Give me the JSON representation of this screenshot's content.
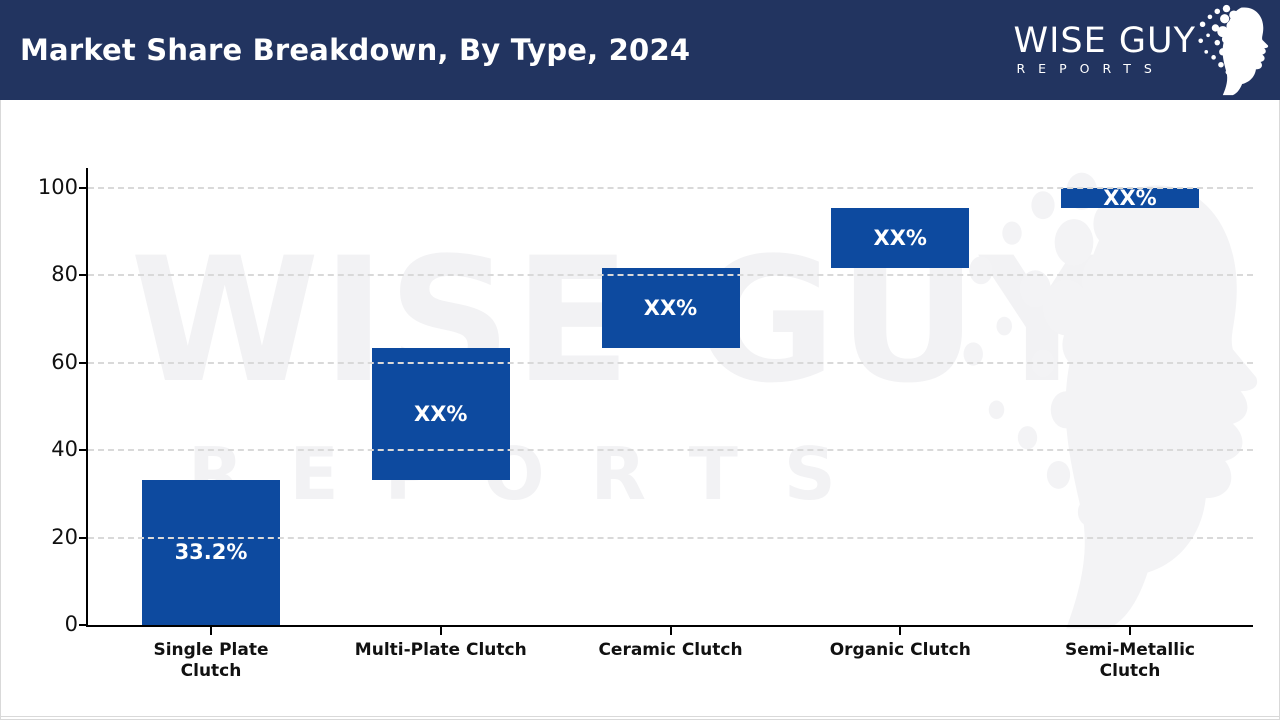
{
  "header": {
    "title": "Market Share Breakdown, By Type, 2024",
    "logo": {
      "wordmark": "WISE GUY",
      "subtitle": "REPORTS"
    }
  },
  "watermark": {
    "line1": "WISE GUY",
    "line2": "REPORTS"
  },
  "chart_data": {
    "type": "bar",
    "subtype": "waterfall",
    "title": "Market Share Breakdown, By Type, 2024",
    "categories": [
      "Single Plate Clutch",
      "Multi-Plate Clutch",
      "Ceramic Clutch",
      "Organic Clutch",
      "Semi-Metallic Clutch"
    ],
    "x_tick_lines": [
      [
        "Single Plate",
        "Clutch"
      ],
      [
        "Multi-Plate Clutch"
      ],
      [
        "Ceramic Clutch"
      ],
      [
        "Organic Clutch"
      ],
      [
        "Semi-Metallic",
        "Clutch"
      ]
    ],
    "series": [
      {
        "name": "Market Share (%)",
        "segments": [
          {
            "category": "Single Plate Clutch",
            "start": 0,
            "end": 33.2,
            "label": "33.2%"
          },
          {
            "category": "Multi-Plate Clutch",
            "start": 33.2,
            "end": 63.5,
            "label": "XX%"
          },
          {
            "category": "Ceramic Clutch",
            "start": 63.5,
            "end": 81.8,
            "label": "XX%"
          },
          {
            "category": "Organic Clutch",
            "start": 81.8,
            "end": 95.5,
            "label": "XX%"
          },
          {
            "category": "Semi-Metallic Clutch",
            "start": 95.5,
            "end": 100,
            "label": "XX%"
          }
        ]
      }
    ],
    "ylim": [
      0,
      100
    ],
    "yticks": [
      0,
      20,
      40,
      60,
      80,
      100
    ],
    "grid": "horizontal-dashed",
    "legend": "none",
    "bar_color": "#0d4a9f",
    "bar_label_color": "#ffffff"
  },
  "colors": {
    "header_bg": "#223460",
    "bar": "#0d4a9f",
    "grid": "#d9d9d9",
    "axis": "#000000",
    "watermark": "#f2f2f4",
    "page_border": "#d9d9d9"
  }
}
